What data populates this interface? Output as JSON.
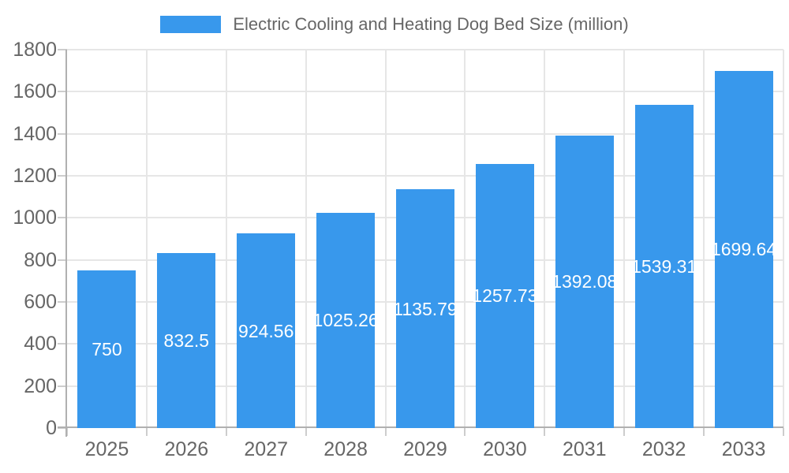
{
  "legend": {
    "label": "Electric Cooling and Heating Dog Bed Size (million)",
    "position": "top"
  },
  "colors": {
    "bar": "#3898EC",
    "text": "#666666",
    "grid": "#E6E6E6",
    "axis": "#B0B0B0",
    "tick": "#CDCDCD",
    "value_label": "#FFFFFF",
    "background": "#FFFFFF"
  },
  "chart_data": {
    "type": "bar",
    "title": "Electric Cooling and Heating Dog Bed Size (million)",
    "categories": [
      "2025",
      "2026",
      "2027",
      "2028",
      "2029",
      "2030",
      "2031",
      "2032",
      "2033"
    ],
    "values": [
      750,
      832.5,
      924.56,
      1025.26,
      1135.79,
      1257.73,
      1392.08,
      1539.31,
      1699.64
    ],
    "value_labels": [
      "750",
      "832.5",
      "924.56",
      "1025.26",
      "1135.79",
      "1257.73",
      "1392.08",
      "1539.31",
      "1699.64"
    ],
    "xlabel": "",
    "ylabel": "",
    "ylim": [
      0,
      1800
    ],
    "yticks": [
      0,
      200,
      400,
      600,
      800,
      1000,
      1200,
      1400,
      1600,
      1800
    ],
    "grid": true,
    "legend_position": "top"
  }
}
